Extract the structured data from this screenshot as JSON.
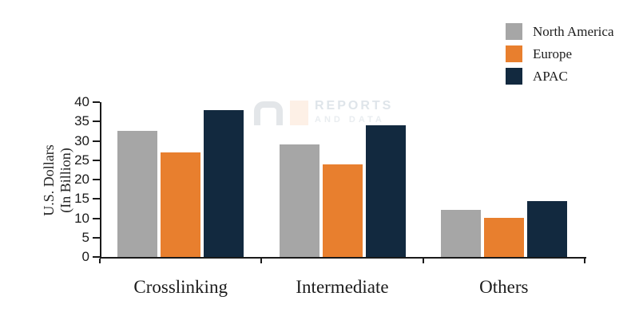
{
  "chart_data": {
    "type": "bar",
    "title": "",
    "categories": [
      "Crosslinking",
      "Intermediate",
      "Others"
    ],
    "series": [
      {
        "name": "North America",
        "color": "#a6a6a6",
        "values": [
          32.5,
          29,
          12.2
        ]
      },
      {
        "name": "Europe",
        "color": "#e87f2e",
        "values": [
          27,
          24,
          10
        ]
      },
      {
        "name": "APAC",
        "color": "#12293f",
        "values": [
          38,
          34,
          14.5
        ]
      }
    ],
    "xlabel": "",
    "ylabel": "U.S. Dollars (In Billion)",
    "ylabel_lines": [
      "U.S. Dollars",
      "(In Billion)"
    ],
    "ylim": [
      0,
      40
    ],
    "yticks": [
      0,
      5,
      10,
      15,
      20,
      25,
      30,
      35,
      40
    ],
    "grid": false,
    "legend_position": "top-right",
    "axis_color": "#1a1a1a"
  },
  "watermark": {
    "line1": "REPORTS",
    "line2": "AND DATA"
  }
}
